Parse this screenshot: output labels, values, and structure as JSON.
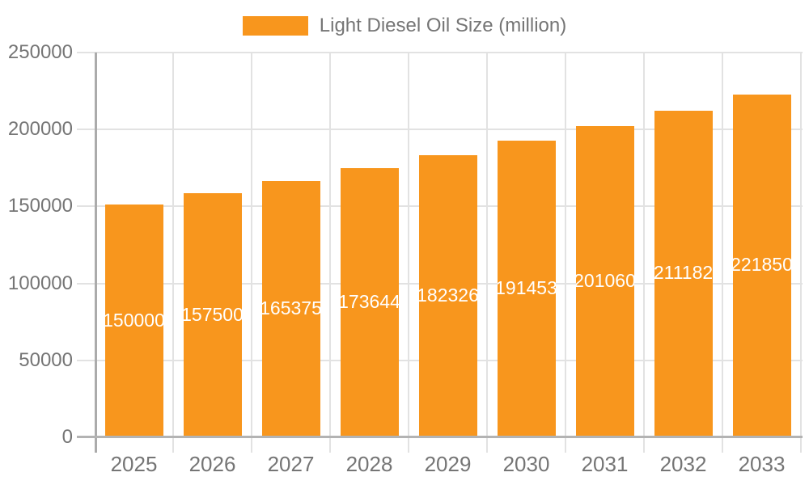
{
  "legend": {
    "label": "Light Diesel Oil Size (million)"
  },
  "colors": {
    "bar": "#F8961D",
    "value_label": "#FFFFFF",
    "axis_text": "#757575",
    "grid_line": "#E2E2E2",
    "axis_line": "#ABABAB",
    "baseline": "#B3B3B3",
    "background": "#FFFFFF"
  },
  "chart_data": {
    "type": "bar",
    "title": "",
    "categories": [
      "2025",
      "2026",
      "2027",
      "2028",
      "2029",
      "2030",
      "2031",
      "2032",
      "2033"
    ],
    "series": [
      {
        "name": "Light Diesel Oil Size (million)",
        "values": [
          150000,
          157500,
          165375,
          173644,
          182326,
          191453,
          201060,
          211182,
          221850
        ]
      }
    ],
    "value_labels": [
      "150000",
      "157500",
      "165375",
      "173644",
      "182326",
      "191453",
      "201060",
      "211182",
      "221850"
    ],
    "xlabel": "",
    "ylabel": "",
    "ylim": [
      0,
      250000
    ],
    "y_ticks": [
      0,
      50000,
      100000,
      150000,
      200000,
      250000
    ],
    "y_tick_labels": [
      "0",
      "50000",
      "100000",
      "150000",
      "200000",
      "250000"
    ],
    "grid": true,
    "legend_position": "top",
    "value_label_position": "inside-center"
  }
}
